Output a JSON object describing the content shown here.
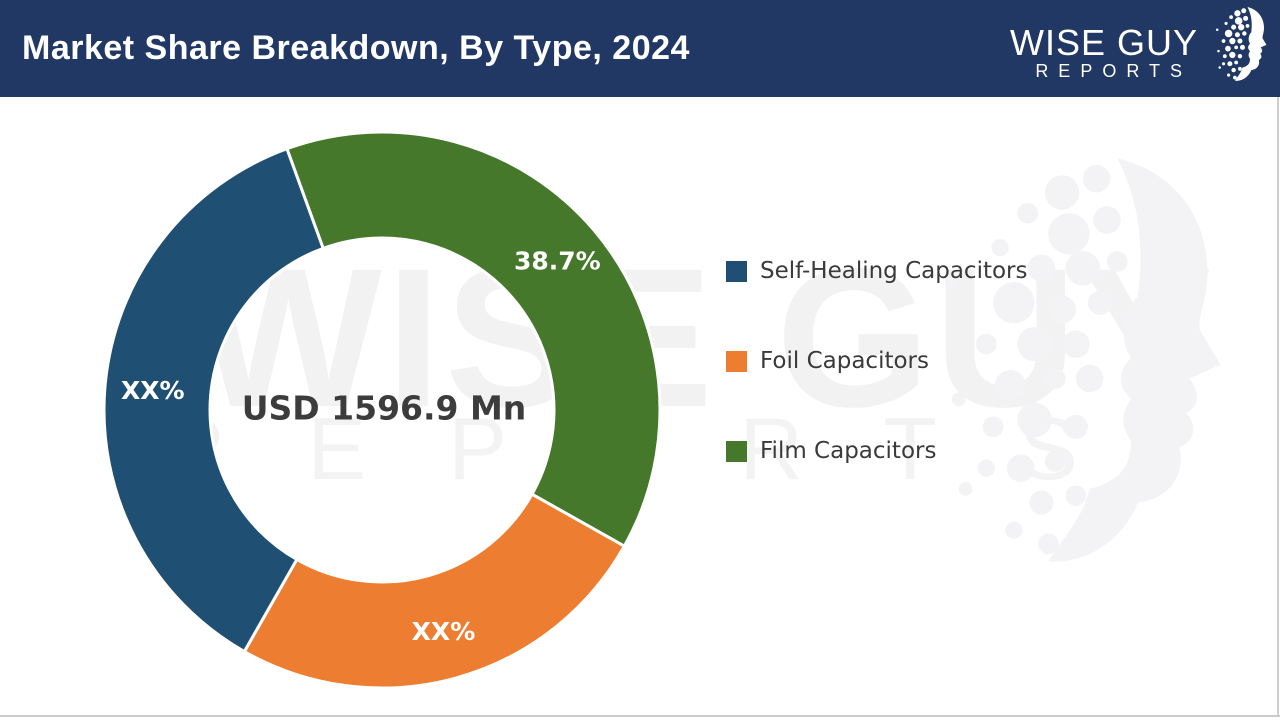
{
  "header": {
    "title": "Market Share Breakdown, By Type, 2024",
    "background_color": "#213864",
    "logo": {
      "line1": "WISE GUY",
      "line2": "REPORTS"
    }
  },
  "watermark": {
    "line1": "WISE GUY",
    "line2": "REPORTS"
  },
  "chart_data": {
    "type": "pie",
    "subtype": "donut",
    "title": "Market Share Breakdown, By Type, 2024",
    "center_label": "USD 1596.9 Mn",
    "start_angle_deg": -20,
    "direction": "clockwise",
    "donut_hole_ratio": 0.62,
    "legend_position": "right",
    "series": [
      {
        "name": "Film Capacitors",
        "value_pct": 38.7,
        "slice_label": "38.7%",
        "color": "#46782B"
      },
      {
        "name": "Foil Capacitors",
        "value_pct": 25.1,
        "slice_label": "XX%",
        "color": "#ED7D31"
      },
      {
        "name": "Self-Healing Capacitors",
        "value_pct": 36.2,
        "slice_label": "XX%",
        "color": "#1F5073"
      }
    ]
  },
  "legend": {
    "items": [
      {
        "label": "Self-Healing Capacitors",
        "color": "#1F5073"
      },
      {
        "label": "Foil Capacitors",
        "color": "#ED7D31"
      },
      {
        "label": "Film Capacitors",
        "color": "#46782B"
      }
    ]
  }
}
